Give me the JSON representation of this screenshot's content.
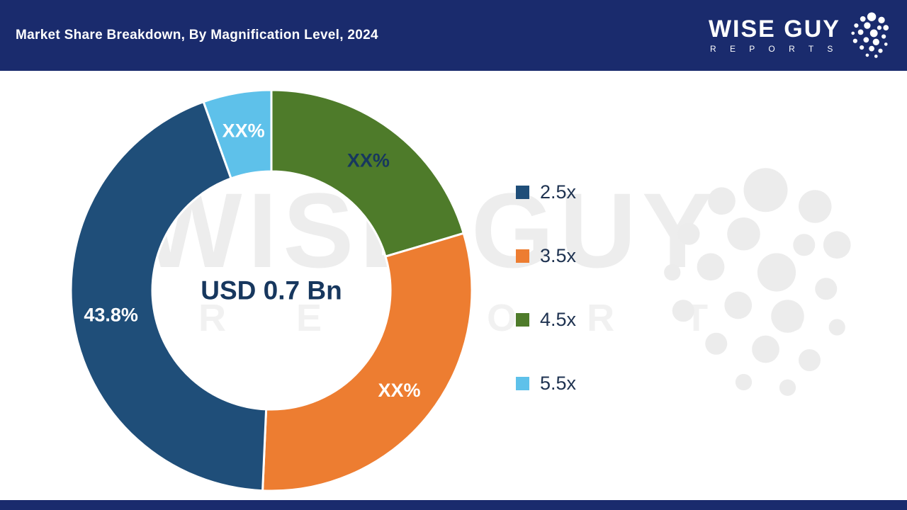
{
  "header": {
    "title": "Market Share Breakdown, By Magnification Level, 2024",
    "background_color": "#1a2b6d",
    "logo": {
      "name": "WISE GUY",
      "tagline": "R E P O R T S"
    }
  },
  "chart_data": {
    "type": "donut",
    "title": "Market Share Breakdown, By Magnification Level, 2024",
    "center_label": "USD 0.7 Bn",
    "categories": [
      "2.5x",
      "3.5x",
      "4.5x",
      "5.5x"
    ],
    "values": [
      43.8,
      30.3,
      20.4,
      5.5
    ],
    "display_labels": [
      "43.8%",
      "XX%",
      "XX%",
      "XX%"
    ],
    "colors": [
      "#1f4e79",
      "#ed7d31",
      "#4e7b2a",
      "#5ec1ea"
    ],
    "label_colors": [
      "#ffffff",
      "#ffffff",
      "#17375e",
      "#ffffff"
    ],
    "draw_sequence": [
      2,
      1,
      0,
      3
    ],
    "legend_position": "right",
    "legend_text_color": "#1e3250"
  },
  "watermark": {
    "line1": "WISE GUY",
    "line2": "R E P O R T S"
  },
  "footer": {
    "background_color": "#1a2b6d"
  }
}
